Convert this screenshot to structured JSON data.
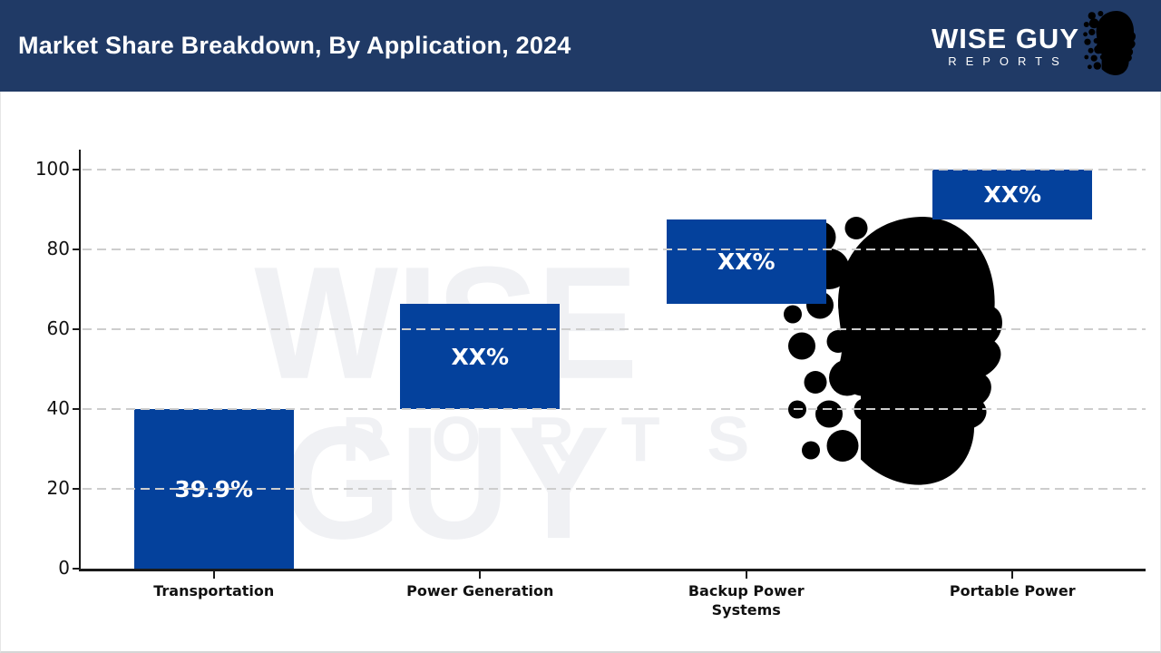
{
  "header": {
    "title": "Market Share Breakdown, By Application, 2024",
    "logo": {
      "brand_top": "WISE GUY",
      "brand_bottom": "REPORTS"
    }
  },
  "watermark": {
    "line1": "WISE GUY",
    "line2": "REPORTS"
  },
  "chart_data": {
    "type": "bar",
    "subtype": "floating-cumulative-waterfall",
    "title": "Market Share Breakdown, By Application, 2024",
    "categories": [
      "Transportation",
      "Power Generation",
      "Backup Power Systems",
      "Portable Power"
    ],
    "segments": [
      {
        "category": "Transportation",
        "start": 0,
        "end": 39.9,
        "label": "39.9%"
      },
      {
        "category": "Power Generation",
        "start": 39.9,
        "end": 66.3,
        "label": "XX%"
      },
      {
        "category": "Backup Power Systems",
        "start": 66.3,
        "end": 87.5,
        "label": "XX%"
      },
      {
        "category": "Portable Power",
        "start": 87.5,
        "end": 100,
        "label": "XX%"
      }
    ],
    "yticks": [
      0,
      20,
      40,
      60,
      80,
      100
    ],
    "ylim": [
      0,
      105
    ],
    "xlabel": "",
    "ylabel": "",
    "legend": "none",
    "grid": "horizontal-dashed",
    "bar_color": "#04419c",
    "bar_label_color": "#ffffff",
    "axis_color": "#1a1a1a",
    "grid_color": "#cdcdcd"
  }
}
